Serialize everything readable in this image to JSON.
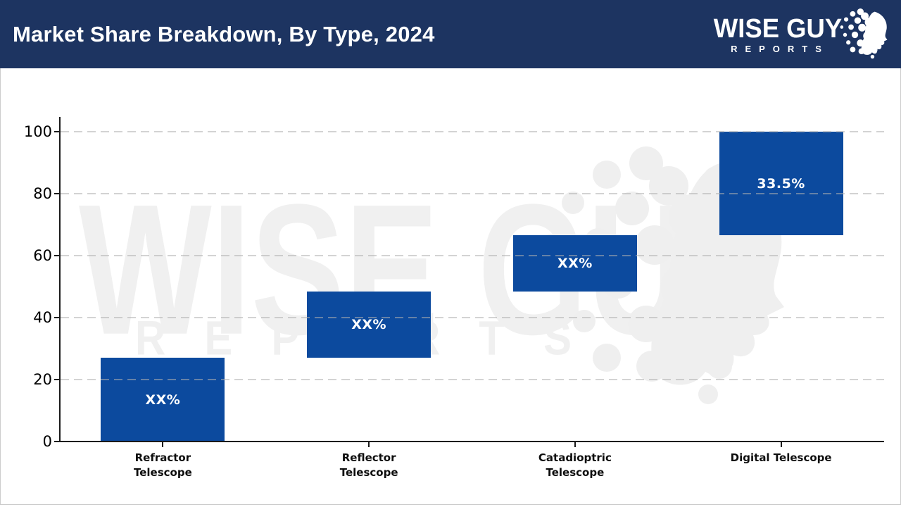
{
  "header": {
    "title": "Market Share Breakdown, By Type, 2024",
    "logo": {
      "name": "WISE GUY",
      "sub": "REPORTS"
    }
  },
  "watermark": {
    "text": "WISE GUY",
    "sub": "REPORTS"
  },
  "theme": {
    "header_bg": "#1D3461",
    "bar_blue": "#0C4A9E",
    "watermark_gray": "#F0F0F0"
  },
  "chart_data": {
    "type": "bar",
    "subtype": "waterfall",
    "title": "Market Share Breakdown, By Type, 2024",
    "categories": [
      "Refractor Telescope",
      "Reflector Telescope",
      "Catadioptric Telescope",
      "Digital Telescope"
    ],
    "category_lines": [
      [
        "Refractor",
        "Telescope"
      ],
      [
        "Reflector",
        "Telescope"
      ],
      [
        "Catadioptric",
        "Telescope"
      ],
      [
        "Digital Telescope"
      ]
    ],
    "segments": [
      {
        "category": "Refractor Telescope",
        "start": 0,
        "end": 27,
        "value": 27,
        "label": "XX%"
      },
      {
        "category": "Reflector Telescope",
        "start": 27,
        "end": 48.5,
        "value": 21.5,
        "label": "XX%"
      },
      {
        "category": "Catadioptric Telescope",
        "start": 48.5,
        "end": 66.5,
        "value": 18,
        "label": "XX%"
      },
      {
        "category": "Digital Telescope",
        "start": 66.5,
        "end": 100,
        "value": 33.5,
        "label": "33.5%"
      }
    ],
    "yticks": [
      0,
      20,
      40,
      60,
      80,
      100
    ],
    "ylim": [
      0,
      100
    ],
    "xlabel": "",
    "ylabel": "",
    "grid": "horizontal-dashed",
    "legend": "none",
    "bar_color": "#0C4A9E",
    "bar_label_color": "#FFFFFF"
  }
}
